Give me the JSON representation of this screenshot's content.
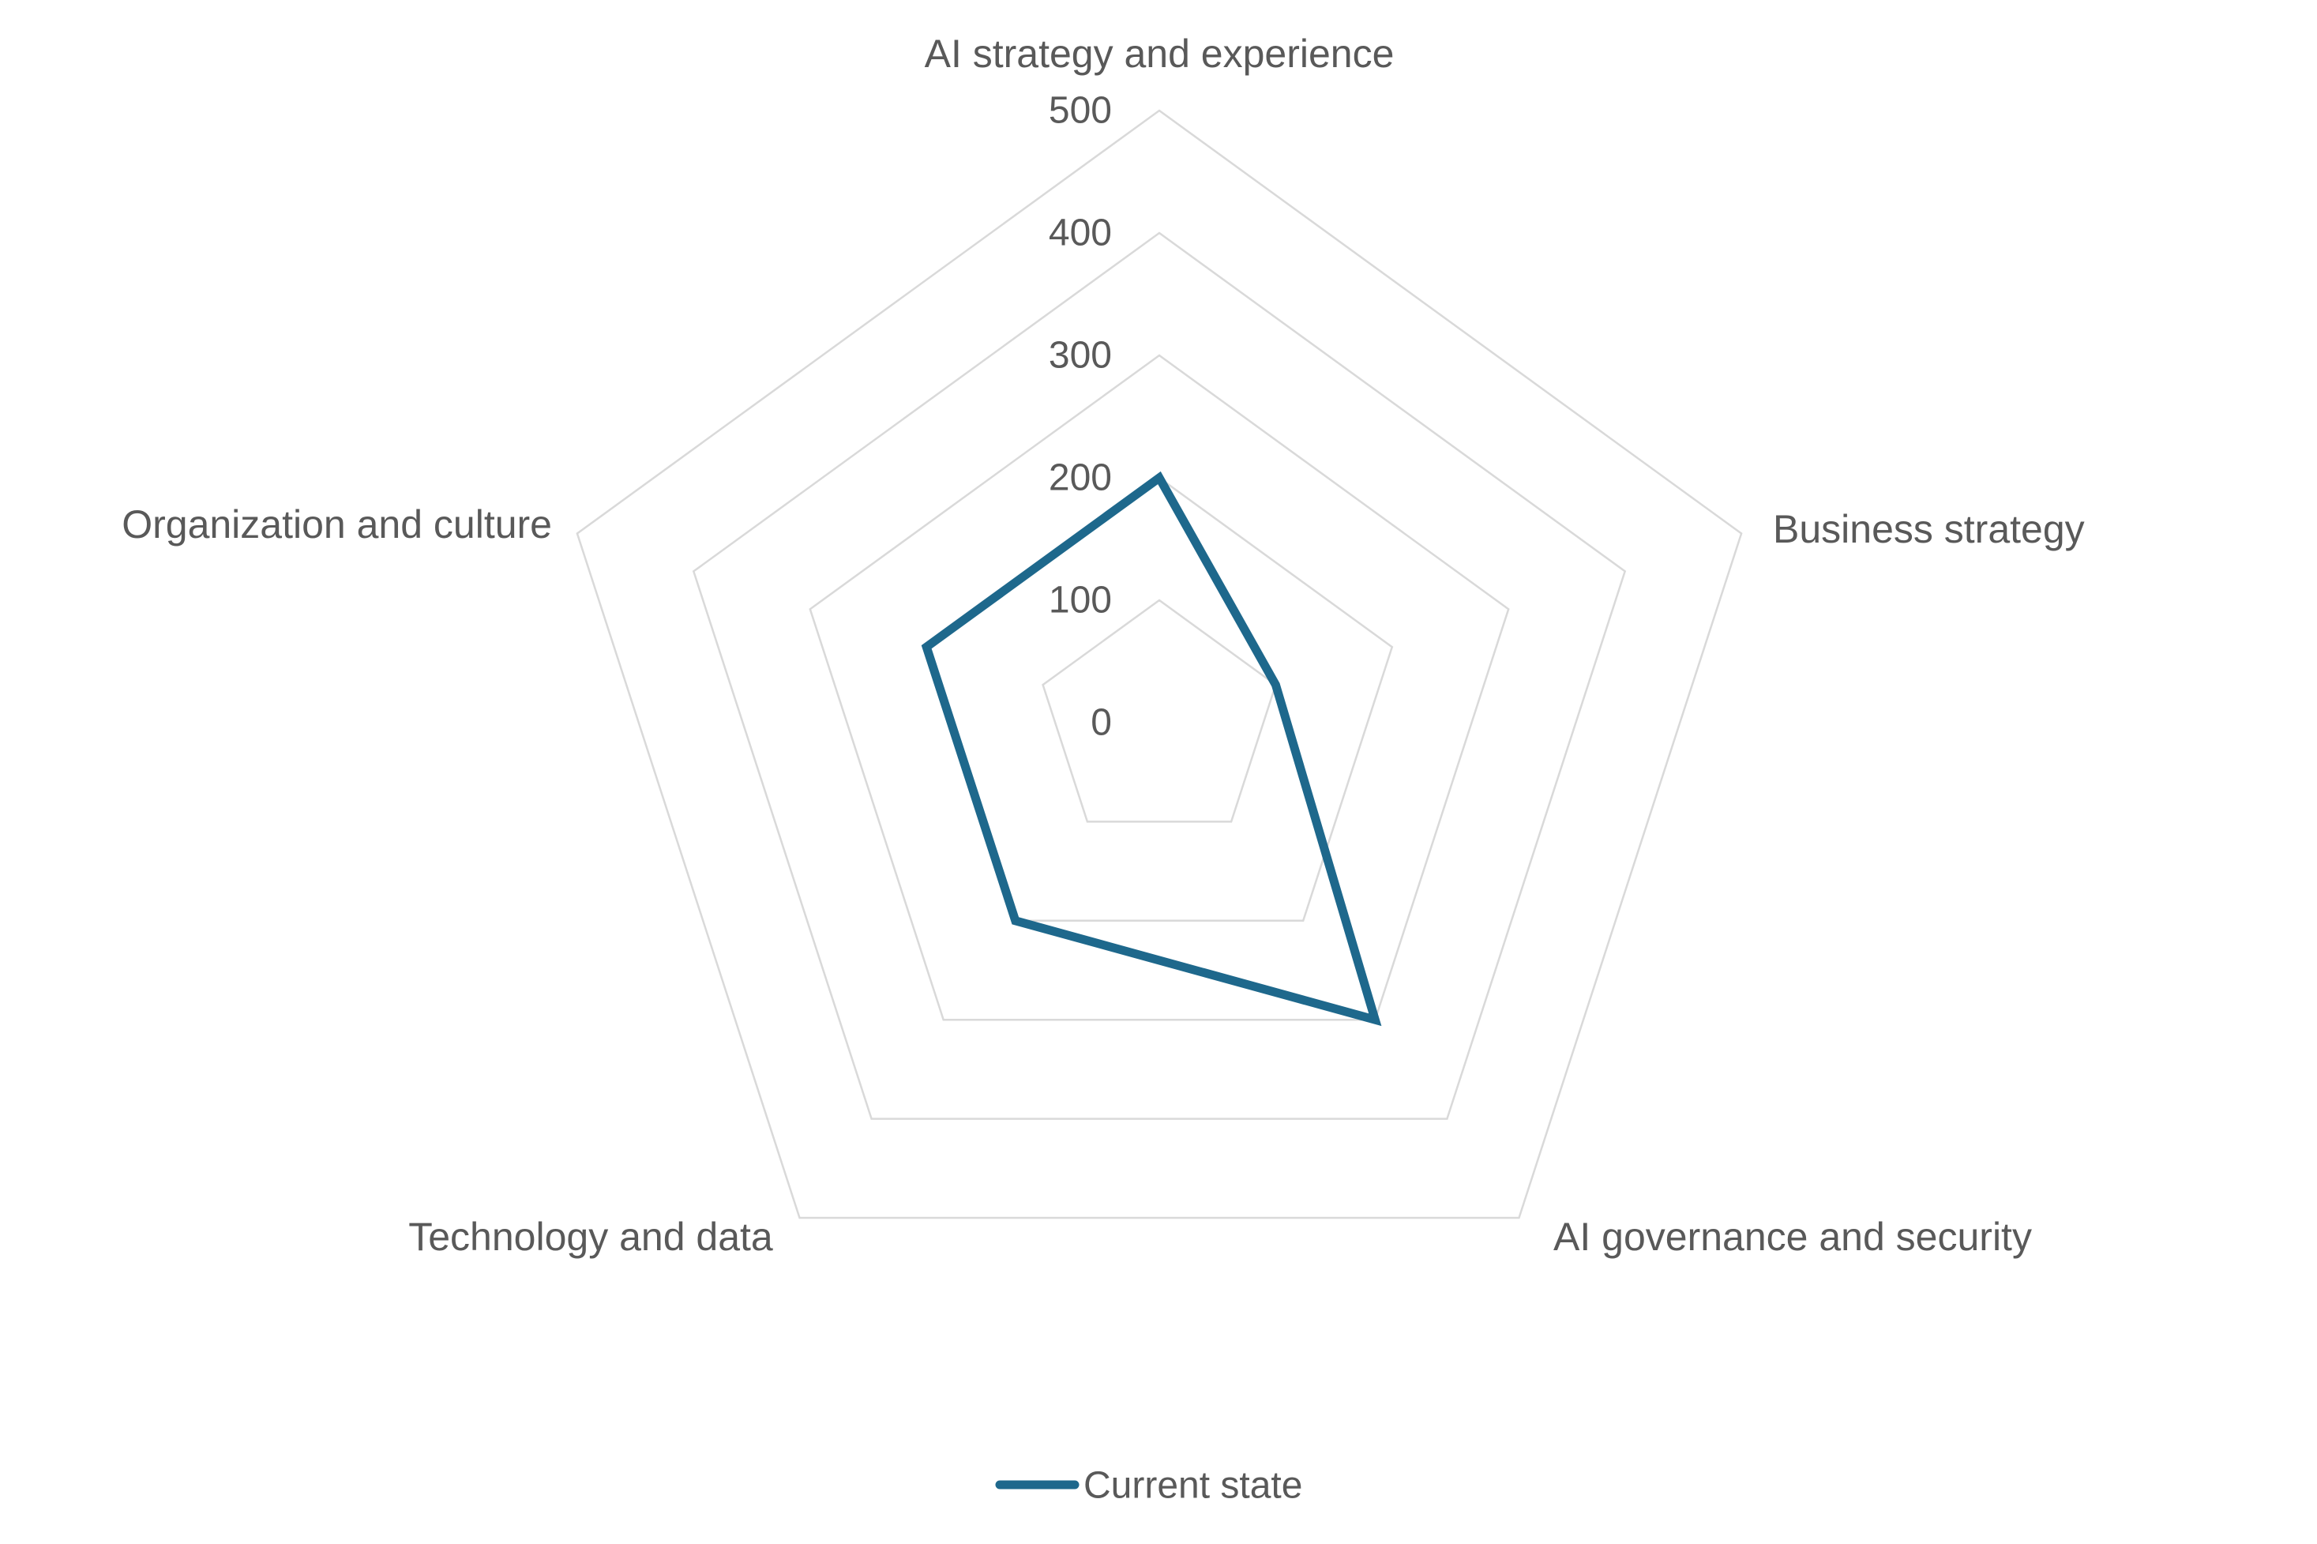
{
  "chart_data": {
    "type": "radar",
    "title": "",
    "categories": [
      "AI strategy and experience",
      "Business strategy",
      "AI governance and security",
      "Technology and data",
      "Organization and culture"
    ],
    "series": [
      {
        "name": "Current state",
        "values": [
          200,
          100,
          300,
          200,
          200
        ],
        "color": "#1E688C"
      }
    ],
    "axis": {
      "min": 0,
      "max": 500,
      "interval": 100,
      "tick_labels": [
        "0",
        "100",
        "200",
        "300",
        "400",
        "500"
      ]
    },
    "grid": {
      "shape": "pentagon",
      "ring_values": [
        100,
        200,
        300,
        400,
        500
      ],
      "color": "#D9D9D9",
      "radial_spokes": false
    },
    "colors": {
      "label": "#595959",
      "background": "#FFFFFF",
      "series_line": "#1E688C"
    },
    "legend": {
      "position": "bottom"
    }
  }
}
